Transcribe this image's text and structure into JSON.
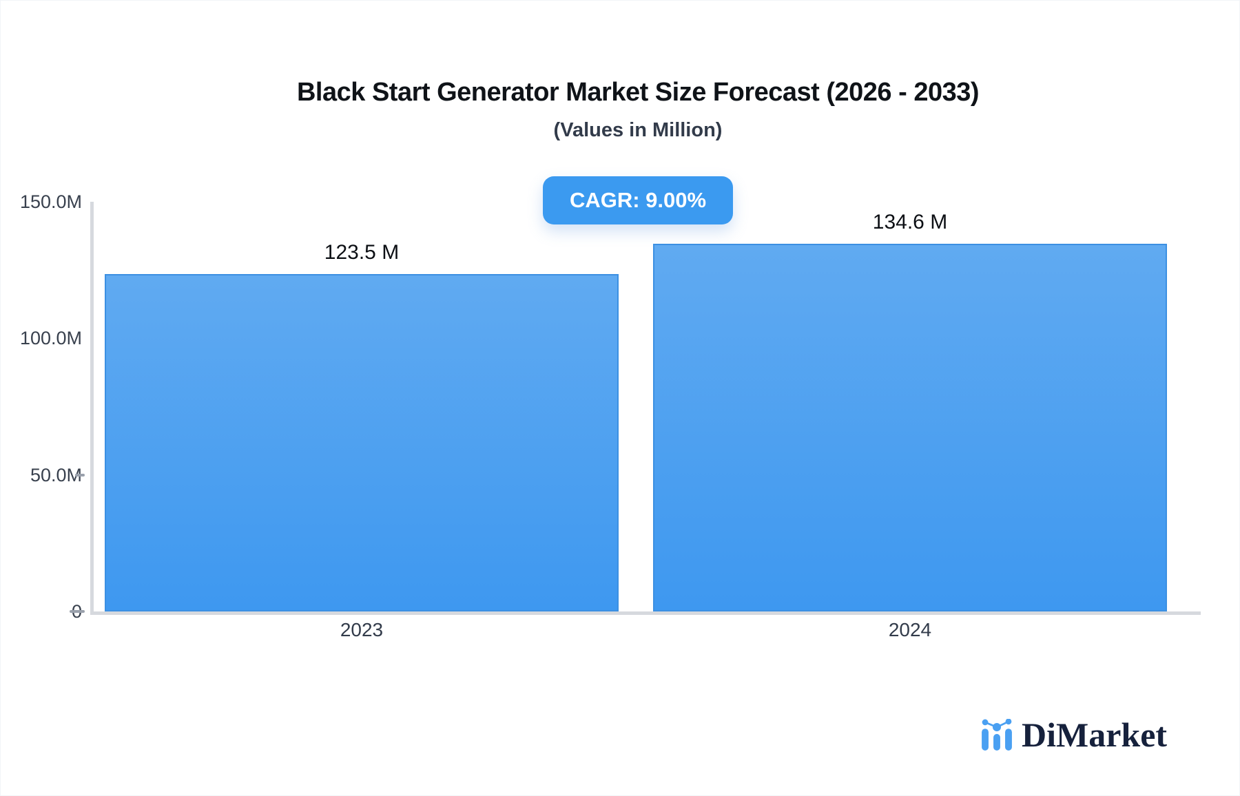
{
  "page": {
    "title": "Black Start Generator Market Size Forecast (2026 - 2033)",
    "subtitle": "(Values in Million)",
    "cagr_badge_label": "CAGR: 9.00%",
    "brand": {
      "name": "DiMarket",
      "icon": "bar-line-chart-icon"
    }
  },
  "chart_data": {
    "type": "bar",
    "title": "Black Start Generator Market Size Forecast (2026 - 2033)",
    "subtitle": "(Values in Million)",
    "unit": "Million",
    "cagr": "9.00%",
    "categories": [
      "2023",
      "2024"
    ],
    "values": [
      123.5,
      134.6
    ],
    "value_labels": [
      "123.5 M",
      "134.6 M"
    ],
    "ylim": [
      0,
      150
    ],
    "yticks": [
      {
        "label": "150.0M",
        "value": 150,
        "tick_len": 0
      },
      {
        "label": "100.0M",
        "value": 100,
        "tick_len": 0
      },
      {
        "label": "50.0M",
        "value": 50,
        "tick_len": 14
      },
      {
        "label": "0",
        "value": 0,
        "tick_len": 22
      }
    ],
    "grid": false,
    "legend": false,
    "colors": {
      "bar_top": "#60aaf1",
      "bar_bottom": "#3e98f0",
      "bar_border": "#3c90e2",
      "badge_bg": "#3b9af0",
      "axis_line": "#d6d9de",
      "tick_color": "#9aa1ac",
      "brand_color": "#16213c",
      "brand_icon_color": "#4aa0f2"
    }
  }
}
